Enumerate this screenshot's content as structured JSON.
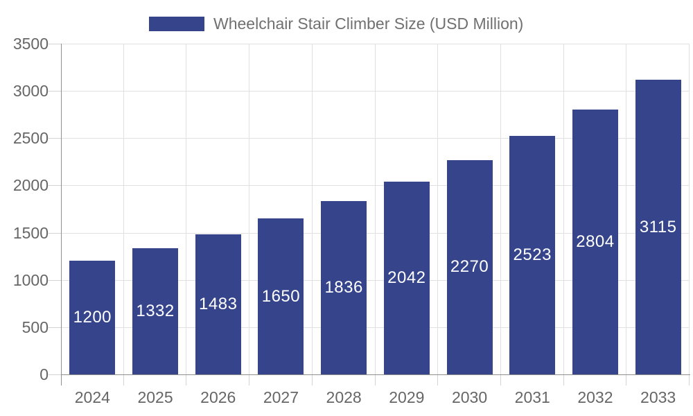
{
  "legend": {
    "label": "Wheelchair Stair Climber Size (USD Million)"
  },
  "colors": {
    "bar": "#36458B",
    "grid": "#e0e0e0",
    "axis": "#8f8f8f",
    "tick": "#d4d4d4",
    "tick_label": "#666666",
    "legend_text": "#707070",
    "bar_label": "#ffffff",
    "background": "#ffffff"
  },
  "chart_data": {
    "type": "bar",
    "title": "Wheelchair Stair Climber Size (USD Million)",
    "categories": [
      "2024",
      "2025",
      "2026",
      "2027",
      "2028",
      "2029",
      "2030",
      "2031",
      "2032",
      "2033"
    ],
    "values": [
      1200,
      1332,
      1483,
      1650,
      1836,
      2042,
      2270,
      2523,
      2804,
      3115
    ],
    "xlabel": "",
    "ylabel": "",
    "ylim": [
      0,
      3500
    ],
    "ytick_step": 500,
    "yticks": [
      0,
      500,
      1000,
      1500,
      2000,
      2500,
      3000,
      3500
    ],
    "grid": true,
    "legend_position": "top",
    "bar_labels_inside": true
  }
}
